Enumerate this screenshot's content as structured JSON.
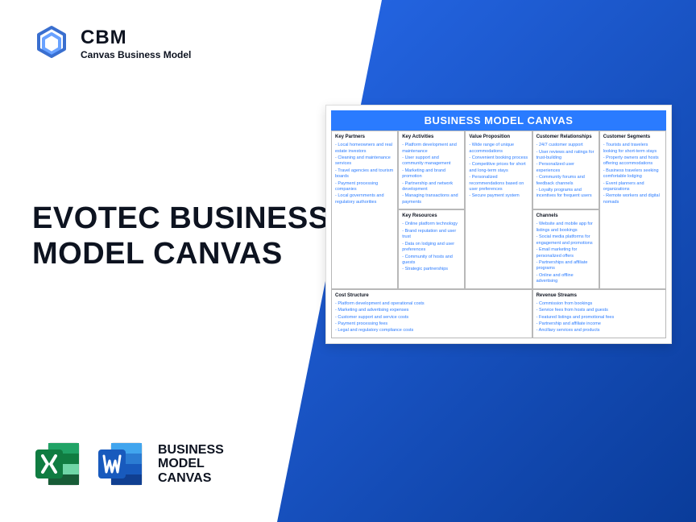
{
  "logo": {
    "main": "CBM",
    "sub": "Canvas Business Model"
  },
  "title": "EVOTEC BUSINESS MODEL CANVAS",
  "apps_label": "BUSINESS\nMODEL\nCANVAS",
  "canvas": {
    "title": "BUSINESS MODEL CANVAS",
    "blocks": {
      "kp": {
        "heading": "Key Partners",
        "items": [
          "Local homeowners and real estate investors",
          "Cleaning and maintenance services",
          "Travel agencies and tourism boards",
          "Payment processing companies",
          "Local governments and regulatory authorities"
        ]
      },
      "ka": {
        "heading": "Key Activities",
        "items": [
          "Platform development and maintenance",
          "User support and community management",
          "Marketing and brand promotion",
          "Partnership and network development",
          "Managing transactions and payments"
        ]
      },
      "vp": {
        "heading": "Value Proposition",
        "items": [
          "Wide range of unique accommodations",
          "Convenient booking process",
          "Competitive prices for short and long-term stays",
          "Personalized recommendations based on user preferences",
          "Secure payment system"
        ]
      },
      "cr": {
        "heading": "Customer Relationships",
        "items": [
          "24/7 customer support",
          "User reviews and ratings for trust-building",
          "Personalized user experiences",
          "Community forums and feedback channels",
          "Loyalty programs and incentives for frequent users"
        ]
      },
      "cs": {
        "heading": "Customer Segments",
        "items": [
          "Tourists and travelers looking for short-term stays",
          "Property owners and hosts offering accommodations",
          "Business travelers seeking comfortable lodging",
          "Event planners and organizations",
          "Remote workers and digital nomads"
        ]
      },
      "kr": {
        "heading": "Key Resources",
        "items": [
          "Online platform technology",
          "Brand reputation and user trust",
          "Data on lodging and user preferences",
          "Community of hosts and guests",
          "Strategic partnerships"
        ]
      },
      "ch": {
        "heading": "Channels",
        "items": [
          "Website and mobile app for listings and bookings",
          "Social media platforms for engagement and promotions",
          "Email marketing for personalized offers",
          "Partnerships and affiliate programs",
          "Online and offline advertising"
        ]
      },
      "cost": {
        "heading": "Cost Structure",
        "items": [
          "Platform development and operational costs",
          "Marketing and advertising expenses",
          "Customer support and service costs",
          "Payment processing fees",
          "Legal and regulatory compliance costs"
        ]
      },
      "rev": {
        "heading": "Revenue Streams",
        "items": [
          "Commission from bookings",
          "Service fees from hosts and guests",
          "Featured listings and promotional fees",
          "Partnership and affiliate income",
          "Ancillary services and products"
        ]
      }
    }
  },
  "colors": {
    "accent": "#2a7bff",
    "text_dark": "#0d1320",
    "excel_dark": "#107c41",
    "excel_light": "#21a366",
    "word_dark": "#185abd",
    "word_light": "#41a5ee"
  }
}
